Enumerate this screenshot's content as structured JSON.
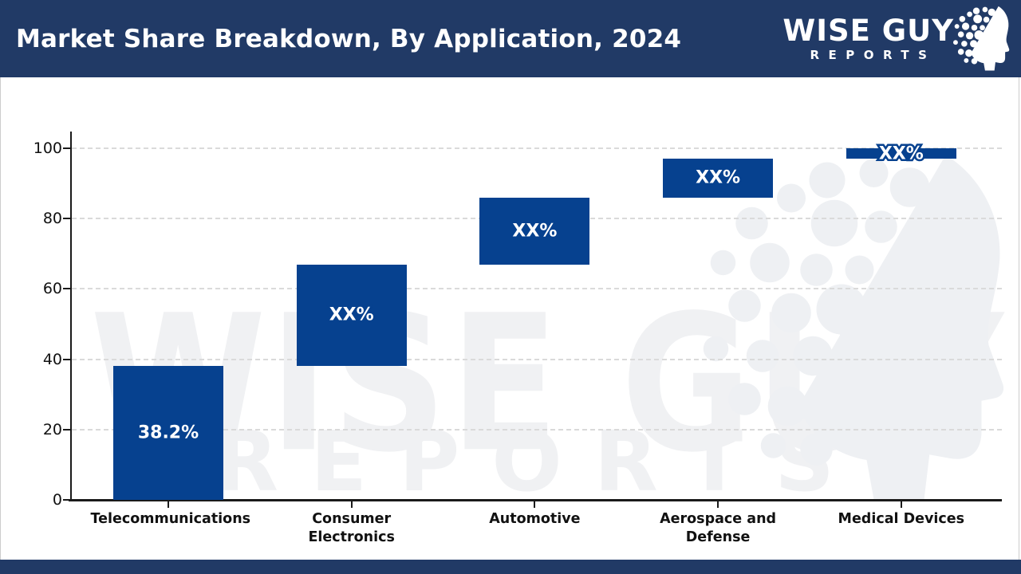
{
  "header": {
    "title": "Market Share Breakdown, By Application, 2024",
    "logo": {
      "wordmark": "WISE GUY",
      "subtext": "REPORTS"
    }
  },
  "watermark": {
    "wordmark": "WISE GUY",
    "subtext": "REPORTS"
  },
  "footer": {},
  "colors": {
    "header_navy": "#213a66",
    "bar_blue": "#06418f",
    "gridline_gray": "#dadada",
    "axis_black": "#1a1a1a",
    "watermark_gray": "#f0f1f3",
    "label_white": "#ffffff"
  },
  "chart_data": {
    "type": "bar",
    "subtype": "waterfall",
    "title": "Market Share Breakdown, By Application, 2024",
    "xlabel": "",
    "ylabel": "",
    "categories": [
      "Telecommunications",
      "Consumer Electronics",
      "Automotive",
      "Aerospace and Defense",
      "Medical Devices"
    ],
    "segments": [
      {
        "category": "Telecommunications",
        "start": 0,
        "end": 38.2,
        "label": "38.2%"
      },
      {
        "category": "Consumer Electronics",
        "start": 38.2,
        "end": 67,
        "label": "XX%"
      },
      {
        "category": "Automotive",
        "start": 67,
        "end": 86,
        "label": "XX%"
      },
      {
        "category": "Aerospace and Defense",
        "start": 86,
        "end": 97,
        "label": "XX%"
      },
      {
        "category": "Medical Devices",
        "start": 97,
        "end": 100,
        "label": "XX%"
      }
    ],
    "yticks": [
      0,
      20,
      40,
      60,
      80,
      100
    ],
    "ylim": [
      0,
      104.5
    ],
    "grid": "horizontal-dashed",
    "legend": "none",
    "bar_color": "#06418f"
  }
}
